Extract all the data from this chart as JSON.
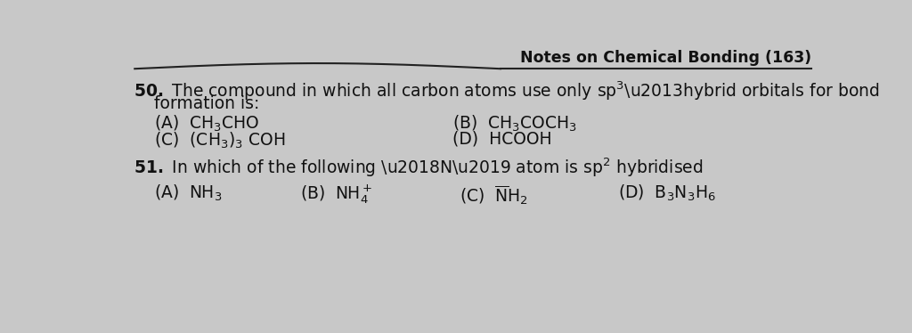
{
  "bg_color": "#c8c8c8",
  "text_color": "#111111",
  "line_color": "#222222",
  "header": "Notes on Chemical Bonding (163)",
  "font_size_main": 13.5,
  "font_size_header": 12.5
}
